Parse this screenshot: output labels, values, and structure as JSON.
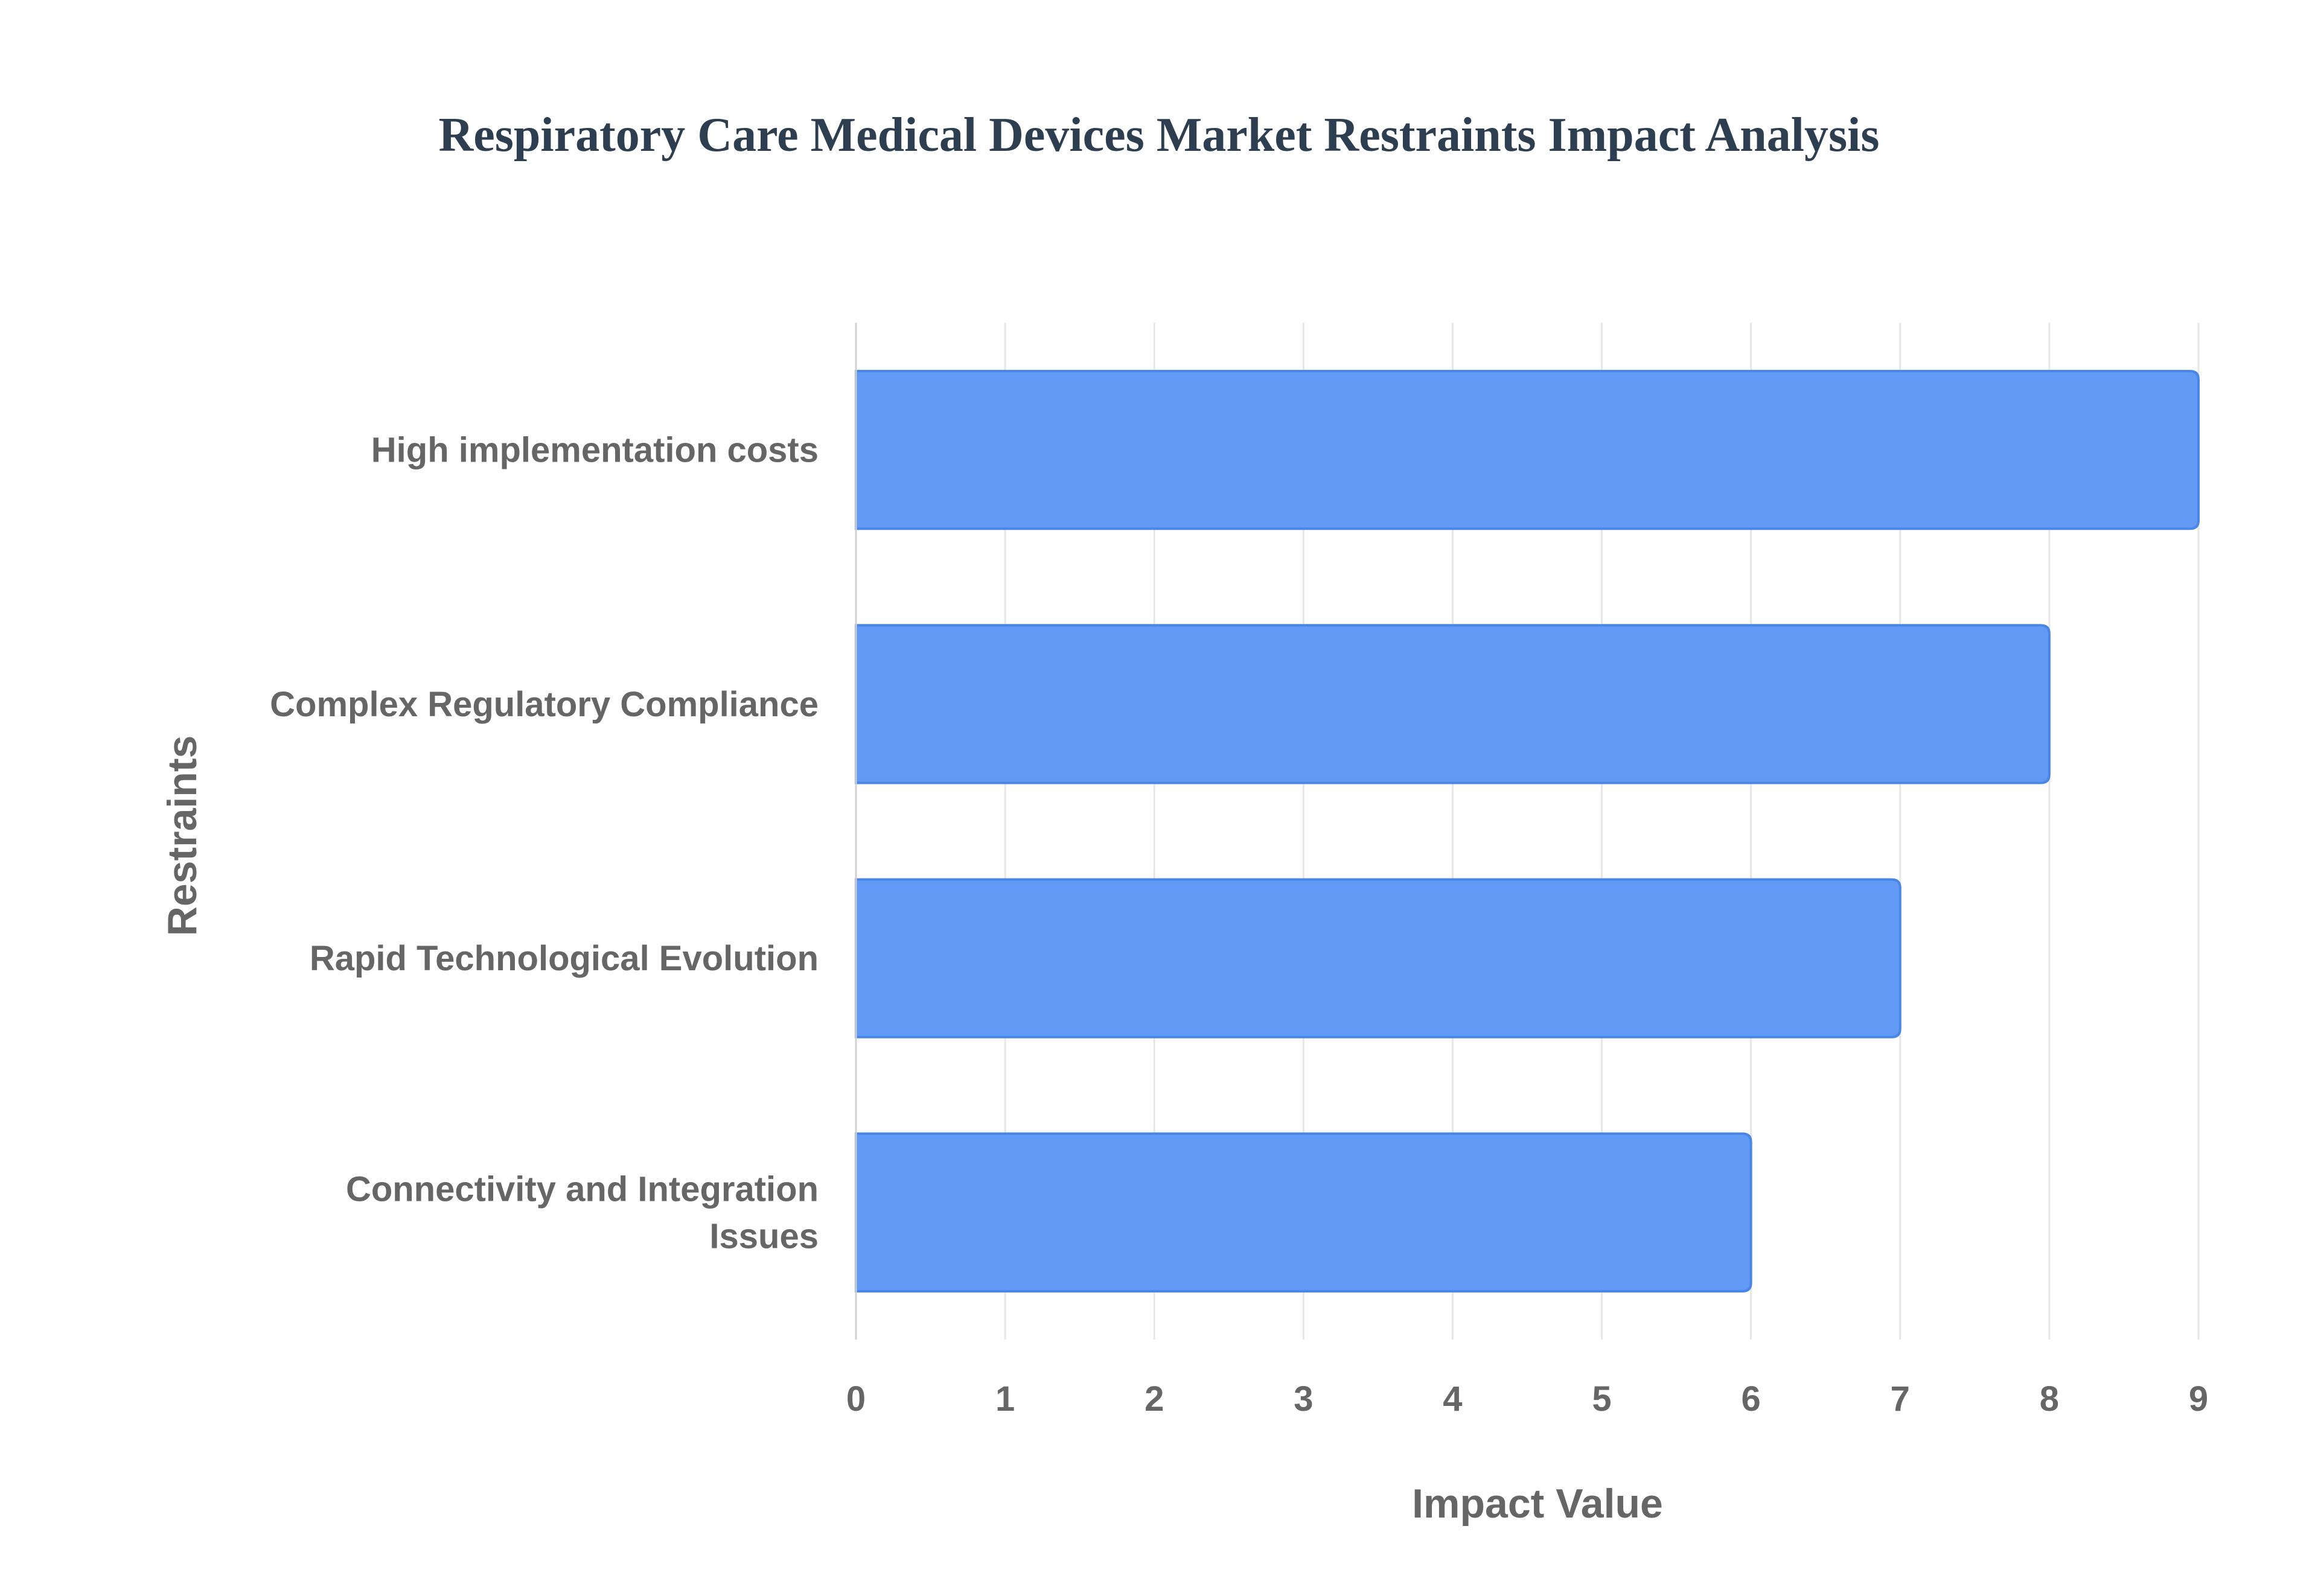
{
  "chart_data": {
    "type": "bar",
    "orientation": "horizontal",
    "title": "Respiratory Care Medical Devices Market Restraints Impact Analysis",
    "xlabel": "Impact Value",
    "ylabel": "Restraints",
    "categories": [
      "High implementation costs",
      "Complex Regulatory Compliance",
      "Rapid Technological Evolution",
      "Connectivity and Integration Issues"
    ],
    "category_label_lines": [
      [
        "High implementation costs"
      ],
      [
        "Complex Regulatory Compliance"
      ],
      [
        "Rapid Technological Evolution"
      ],
      [
        "Connectivity and Integration",
        "Issues"
      ]
    ],
    "values": [
      9,
      8,
      7,
      6
    ],
    "xlim": [
      0,
      9
    ],
    "xticks": [
      "0",
      "1",
      "2",
      "3",
      "4",
      "5",
      "6",
      "7",
      "8",
      "9"
    ],
    "grid": true,
    "legend": "none",
    "colors": {
      "bar_fill": "#6199f4",
      "bar_stroke": "#4a86e8",
      "grid": "#e6e6e6",
      "title": "#2c3e50",
      "text": "#666666"
    }
  }
}
